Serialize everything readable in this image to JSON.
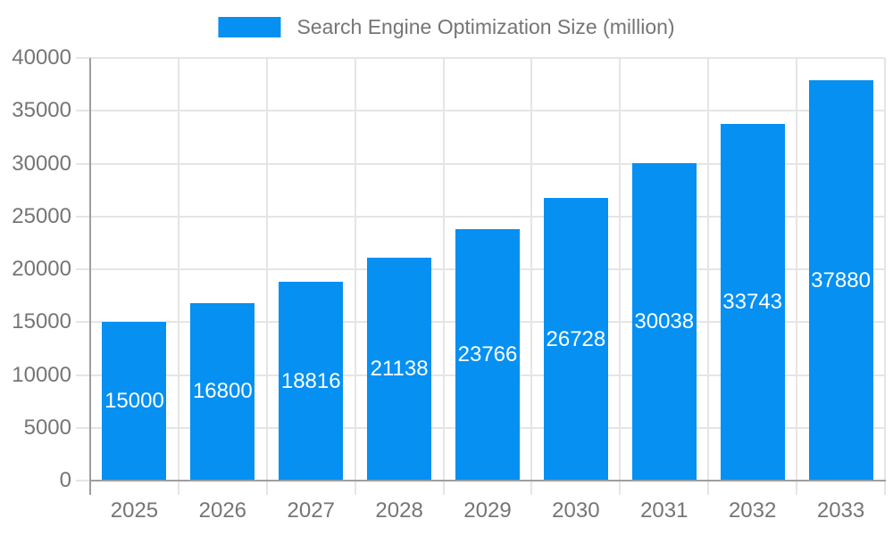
{
  "legend": {
    "label": "Search Engine Optimization Size (million)"
  },
  "chart_data": {
    "type": "bar",
    "title": "Search Engine Optimization Size (million)",
    "series_name": "Search Engine Optimization Size (million)",
    "categories": [
      "2025",
      "2026",
      "2027",
      "2028",
      "2029",
      "2030",
      "2031",
      "2032",
      "2033"
    ],
    "values": [
      15000,
      16800,
      18816,
      21138,
      23766,
      26728,
      30038,
      33743,
      37880
    ],
    "bar_value_labels": [
      "15000",
      "16800",
      "18816",
      "21138",
      "23766",
      "26728",
      "30038",
      "33743",
      "37880"
    ],
    "xlabel": "",
    "ylabel": "",
    "ylim": [
      0,
      40000
    ],
    "ytick_step": 5000,
    "ytick_labels": [
      "0",
      "5000",
      "10000",
      "15000",
      "20000",
      "25000",
      "30000",
      "35000",
      "40000"
    ],
    "grid": true,
    "legend_position": "top-center",
    "colors": {
      "bar": "#0590f2",
      "bar_value_text": "#ffffff",
      "axis_line": "#9e9e9e",
      "gridline": "#e5e5e5",
      "tick_text": "#757575",
      "legend_text": "#757575",
      "background": "#ffffff"
    }
  }
}
